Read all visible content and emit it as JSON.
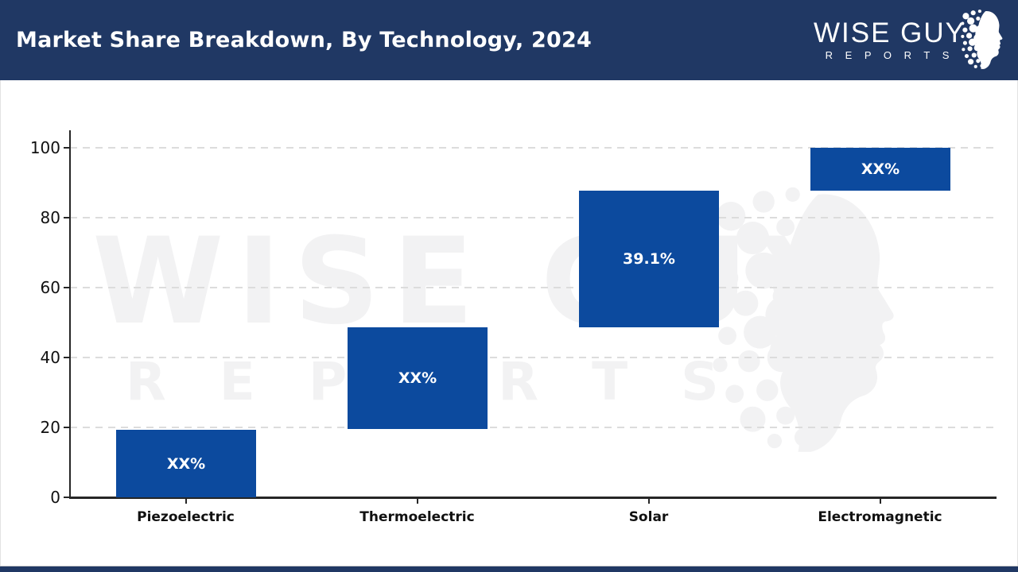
{
  "header": {
    "title": "Market Share Breakdown, By Technology, 2024",
    "logo_line1": "WISE GUY",
    "logo_line2": "R E P O R T S"
  },
  "watermark": {
    "line1": "WISE GUY",
    "line2": "R E P O R T S"
  },
  "colors": {
    "header_bg": "#203864",
    "bar_blue": "#0c4a9e",
    "gridline_gray": "#dcdcdc",
    "watermark_gray": "#f2f2f3"
  },
  "chart_data": {
    "type": "bar",
    "subtype": "waterfall",
    "title": "Market Share Breakdown, By Technology, 2024",
    "categories": [
      "Piezoelectric",
      "Thermoelectric",
      "Solar",
      "Electromagnetic"
    ],
    "segments": [
      {
        "category": "Piezoelectric",
        "start": 0,
        "end": 19.3,
        "label": "XX%"
      },
      {
        "category": "Thermoelectric",
        "start": 19.5,
        "end": 48.6,
        "label": "XX%"
      },
      {
        "category": "Solar",
        "start": 48.6,
        "end": 87.7,
        "label": "39.1%"
      },
      {
        "category": "Electromagnetic",
        "start": 87.7,
        "end": 100,
        "label": "XX%"
      }
    ],
    "yticks": [
      0,
      20,
      40,
      60,
      80,
      100
    ],
    "ylim": [
      0,
      105
    ],
    "xlabel": "",
    "ylabel": "",
    "grid": "horizontal-dashed",
    "legend": "none",
    "bar_color": "#0c4a9e"
  }
}
